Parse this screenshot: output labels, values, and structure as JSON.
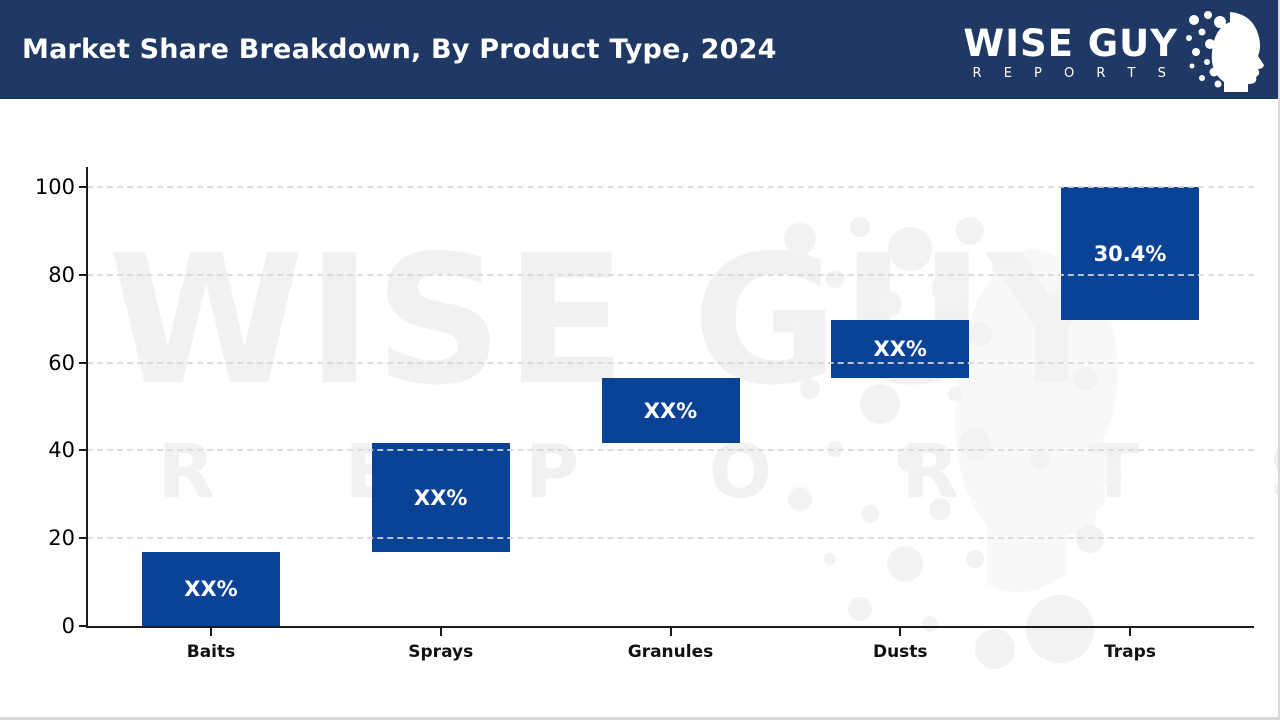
{
  "header": {
    "title": "Market Share Breakdown, By Product Type, 2024",
    "logo": {
      "line1": "WISE GUY",
      "line2": "R E P O R T S"
    }
  },
  "watermark": {
    "line1": "WISE GUY",
    "line2": "R E P O R T S"
  },
  "colors": {
    "header_bg": "#1f3864",
    "bar": "#0a4296",
    "bar_label_text": "#ffffff",
    "gridline": "#d7d7d7",
    "axis": "#1a1a1a",
    "watermark": "#f1f1f2"
  },
  "chart_data": {
    "type": "bar",
    "subtype": "waterfall",
    "title": "Market Share Breakdown, By Product Type, 2024",
    "categories": [
      "Baits",
      "Sprays",
      "Granules",
      "Dusts",
      "Traps"
    ],
    "values": [
      16.8,
      24.8,
      14.8,
      13.2,
      30.4
    ],
    "cumulative_start": [
      0,
      16.8,
      41.6,
      56.4,
      69.6
    ],
    "bar_labels": [
      "XX%",
      "XX%",
      "XX%",
      "XX%",
      "30.4%"
    ],
    "xlabel": "",
    "ylabel": "",
    "ylim": [
      0,
      100
    ],
    "yticks": [
      0,
      20,
      40,
      60,
      80,
      100
    ],
    "grid": "dashed-horizontal-over-bars",
    "legend": "none"
  }
}
